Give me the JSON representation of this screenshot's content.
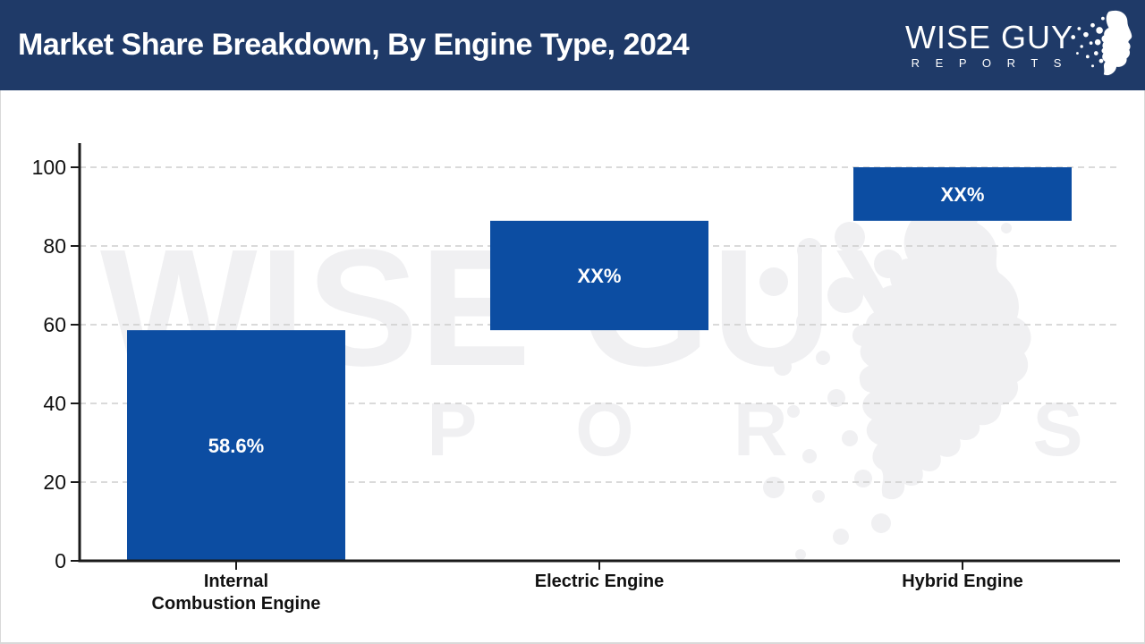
{
  "header": {
    "title": "Market Share Breakdown, By Engine Type, 2024",
    "bg_color": "#1F3A68",
    "logo": {
      "line1": "WISE GUY",
      "line2": "R E P O R T S"
    }
  },
  "watermark": {
    "line1": "WISE GUY",
    "line2": "R E P O R T S"
  },
  "chart_data": {
    "type": "bar",
    "subtype": "waterfall-breakdown",
    "title": "Market Share Breakdown, By Engine Type, 2024",
    "categories": [
      "Internal Combustion Engine",
      "Electric Engine",
      "Hybrid Engine"
    ],
    "category_label_lines": [
      [
        "Internal",
        "Combustion Engine"
      ],
      [
        "Electric Engine"
      ],
      [
        "Hybrid Engine"
      ]
    ],
    "bars": [
      {
        "category": "Internal Combustion Engine",
        "label": "58.6%",
        "start": 0,
        "end": 58.6
      },
      {
        "category": "Electric Engine",
        "label": "XX%",
        "start": 58.6,
        "end": 86.4
      },
      {
        "category": "Hybrid Engine",
        "label": "XX%",
        "start": 86.4,
        "end": 100
      }
    ],
    "xlabel": "",
    "ylabel": "",
    "ylim": [
      0,
      100
    ],
    "yticks": [
      0,
      20,
      40,
      60,
      80,
      100
    ],
    "grid": "dashed-horizontal",
    "legend": "none",
    "bar_color": "#0C4DA2",
    "bar_label_color": "#FFFFFF",
    "axis_color": "#1A1A1A",
    "grid_color": "#CDCDCD",
    "tick_label_color": "#111111"
  }
}
